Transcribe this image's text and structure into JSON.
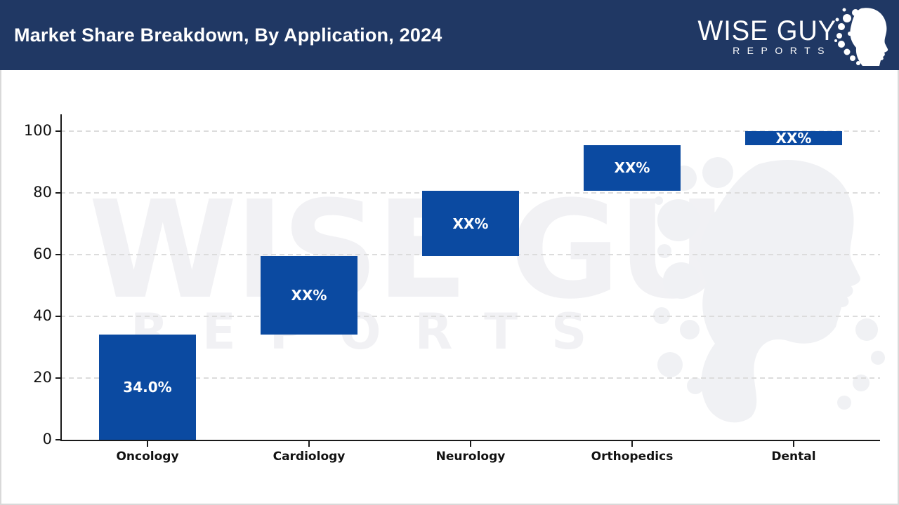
{
  "header": {
    "title": "Market Share Breakdown, By Application, 2024",
    "logo": {
      "primary": "WISE GUY",
      "secondary": "REPORTS"
    }
  },
  "watermark": {
    "line1": "WISE GUY",
    "line2": "REPORTS"
  },
  "chart_data": {
    "type": "waterfall",
    "title": "Market Share Breakdown, By Application, 2024",
    "categories": [
      "Oncology",
      "Cardiology",
      "Neurology",
      "Orthopedics",
      "Dental"
    ],
    "segments": [
      {
        "category": "Oncology",
        "start": 0,
        "end": 34.0,
        "bar_label": "34.0%"
      },
      {
        "category": "Cardiology",
        "start": 34.0,
        "end": 59.5,
        "bar_label": "XX%"
      },
      {
        "category": "Neurology",
        "start": 59.5,
        "end": 80.7,
        "bar_label": "XX%"
      },
      {
        "category": "Orthopedics",
        "start": 80.7,
        "end": 95.5,
        "bar_label": "XX%"
      },
      {
        "category": "Dental",
        "start": 95.5,
        "end": 100.0,
        "bar_label": "XX%"
      }
    ],
    "yticks": [
      0,
      20,
      40,
      60,
      80,
      100
    ],
    "ylim": [
      0,
      105
    ],
    "xlabel": "",
    "ylabel": "",
    "grid": "horizontal-dashed",
    "legend": "none",
    "bar_color": "#0b4aa1",
    "bar_label_color": "#ffffff",
    "grid_color": "#dcdcdc",
    "axis_color": "#1a1a1a"
  }
}
